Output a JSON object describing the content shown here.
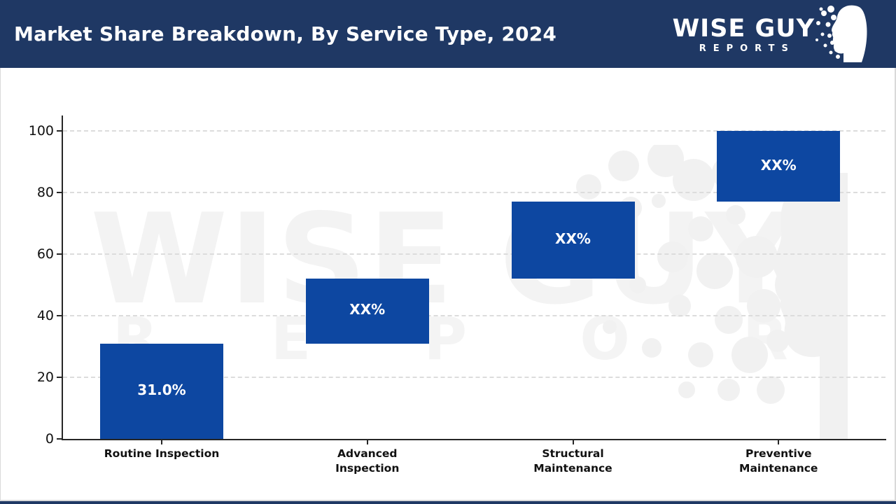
{
  "header": {
    "title": "Market Share Breakdown, By Service Type, 2024",
    "background_color": "#1f3864",
    "logo": {
      "line1": "WISE GUY",
      "line2": "REPORTS",
      "icon": "dotted-head-profile"
    }
  },
  "watermark": {
    "line1": "WISE GUY",
    "line2": "R E P O R T S"
  },
  "chart_data": {
    "type": "bar",
    "variant": "waterfall",
    "title": "Market Share Breakdown, By Service Type, 2024",
    "categories": [
      [
        "Routine Inspection"
      ],
      [
        "Advanced",
        "Inspection"
      ],
      [
        "Structural",
        "Maintenance"
      ],
      [
        "Preventive",
        "Maintenance"
      ]
    ],
    "segments": [
      {
        "category": "Routine Inspection",
        "start": 0,
        "end": 31,
        "label": "31.0%"
      },
      {
        "category": "Advanced Inspection",
        "start": 31,
        "end": 52,
        "label": "XX%"
      },
      {
        "category": "Structural Maintenance",
        "start": 52,
        "end": 77,
        "label": "XX%"
      },
      {
        "category": "Preventive Maintenance",
        "start": 77,
        "end": 100,
        "label": "XX%"
      }
    ],
    "yticks": [
      0,
      20,
      40,
      60,
      80,
      100
    ],
    "ylim": [
      0,
      105
    ],
    "xlabel": "",
    "ylabel": "",
    "legend": "none",
    "grid": {
      "horizontal": true,
      "style": "dashed",
      "color": "#dcdcdc"
    },
    "bar_color": "#0d47a1",
    "bar_label_color": "#ffffff",
    "axis_color": "#262626"
  }
}
